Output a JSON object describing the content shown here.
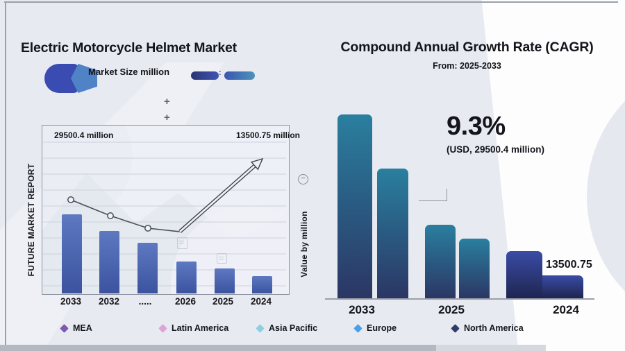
{
  "header_left": {
    "title": "Electric Motorcycle Helmet Market",
    "market_size_label": "Market Size million",
    "ratio_separator": ":"
  },
  "header_right": {
    "title": "Compound Annual Growth Rate (CAGR)",
    "subtitle": "From: 2025-2033"
  },
  "cagr_panel": {
    "rate": "9.3%",
    "note": "(USD, 29500.4 million)"
  },
  "left_chart": {
    "start_value_label": "29500.4 million",
    "end_value_label": "13500.75 million",
    "left_axis_label": "FUTURE MARKET REPORT",
    "right_axis_label": "Value by million"
  },
  "right_chart": {
    "annotation": "13500.75"
  },
  "icons": {
    "plus": "+",
    "minus": "−"
  },
  "legend": {
    "items": [
      {
        "label": "MEA",
        "color": "#7e57b0"
      },
      {
        "label": "Latin America",
        "color": "#d9a6d6"
      },
      {
        "label": "Asia Pacific",
        "color": "#8ecfdf"
      },
      {
        "label": "Europe",
        "color": "#4a9fe8"
      },
      {
        "label": "North America",
        "color": "#2d3d6b"
      }
    ]
  },
  "chart_data": [
    {
      "type": "bar",
      "title": "Electric Motorcycle Helmet Market",
      "ylabel": "Value by million",
      "side_label": "FUTURE MARKET REPORT",
      "categories": [
        "2033",
        "2032",
        ".....",
        "2026",
        "2025",
        "2024"
      ],
      "values_rel": [
        100,
        79,
        64,
        40,
        32,
        22
      ],
      "annotations": {
        "start": "29500.4 million",
        "end": "13500.75 million"
      },
      "trend_line": {
        "points_frac": [
          [
            0.1165,
            0.4403
          ],
          [
            0.2784,
            0.535
          ],
          [
            0.4318,
            0.609
          ],
          [
            0.5625,
            0.6296
          ]
        ],
        "arrow_end_frac": [
          0.9006,
          0.1975
        ]
      },
      "grid": true,
      "colors": {
        "bar_top": "#5d79c0",
        "bar_bottom": "#3c53a0"
      }
    },
    {
      "type": "bar",
      "title": "Compound Annual Growth Rate (CAGR)",
      "period": "From: 2025-2033",
      "cagr": "9.3%",
      "note": "(USD, 29500.4 million)",
      "categories": [
        "2033",
        "2025",
        "2024"
      ],
      "series": [
        {
          "name": "bar-a",
          "values_rel": [
            100,
            40,
            25.7
          ]
        },
        {
          "name": "bar-b",
          "values_rel": [
            70.6,
            32.5,
            12.5
          ]
        }
      ],
      "annotation": {
        "text": "13500.75",
        "category": "2024"
      },
      "grid": false,
      "colors": {
        "bar_top": "#2a7f9f",
        "bar_bottom": "#2b3664",
        "alt_top": "#3a4ca6",
        "alt_bottom": "#1f2550"
      }
    }
  ]
}
